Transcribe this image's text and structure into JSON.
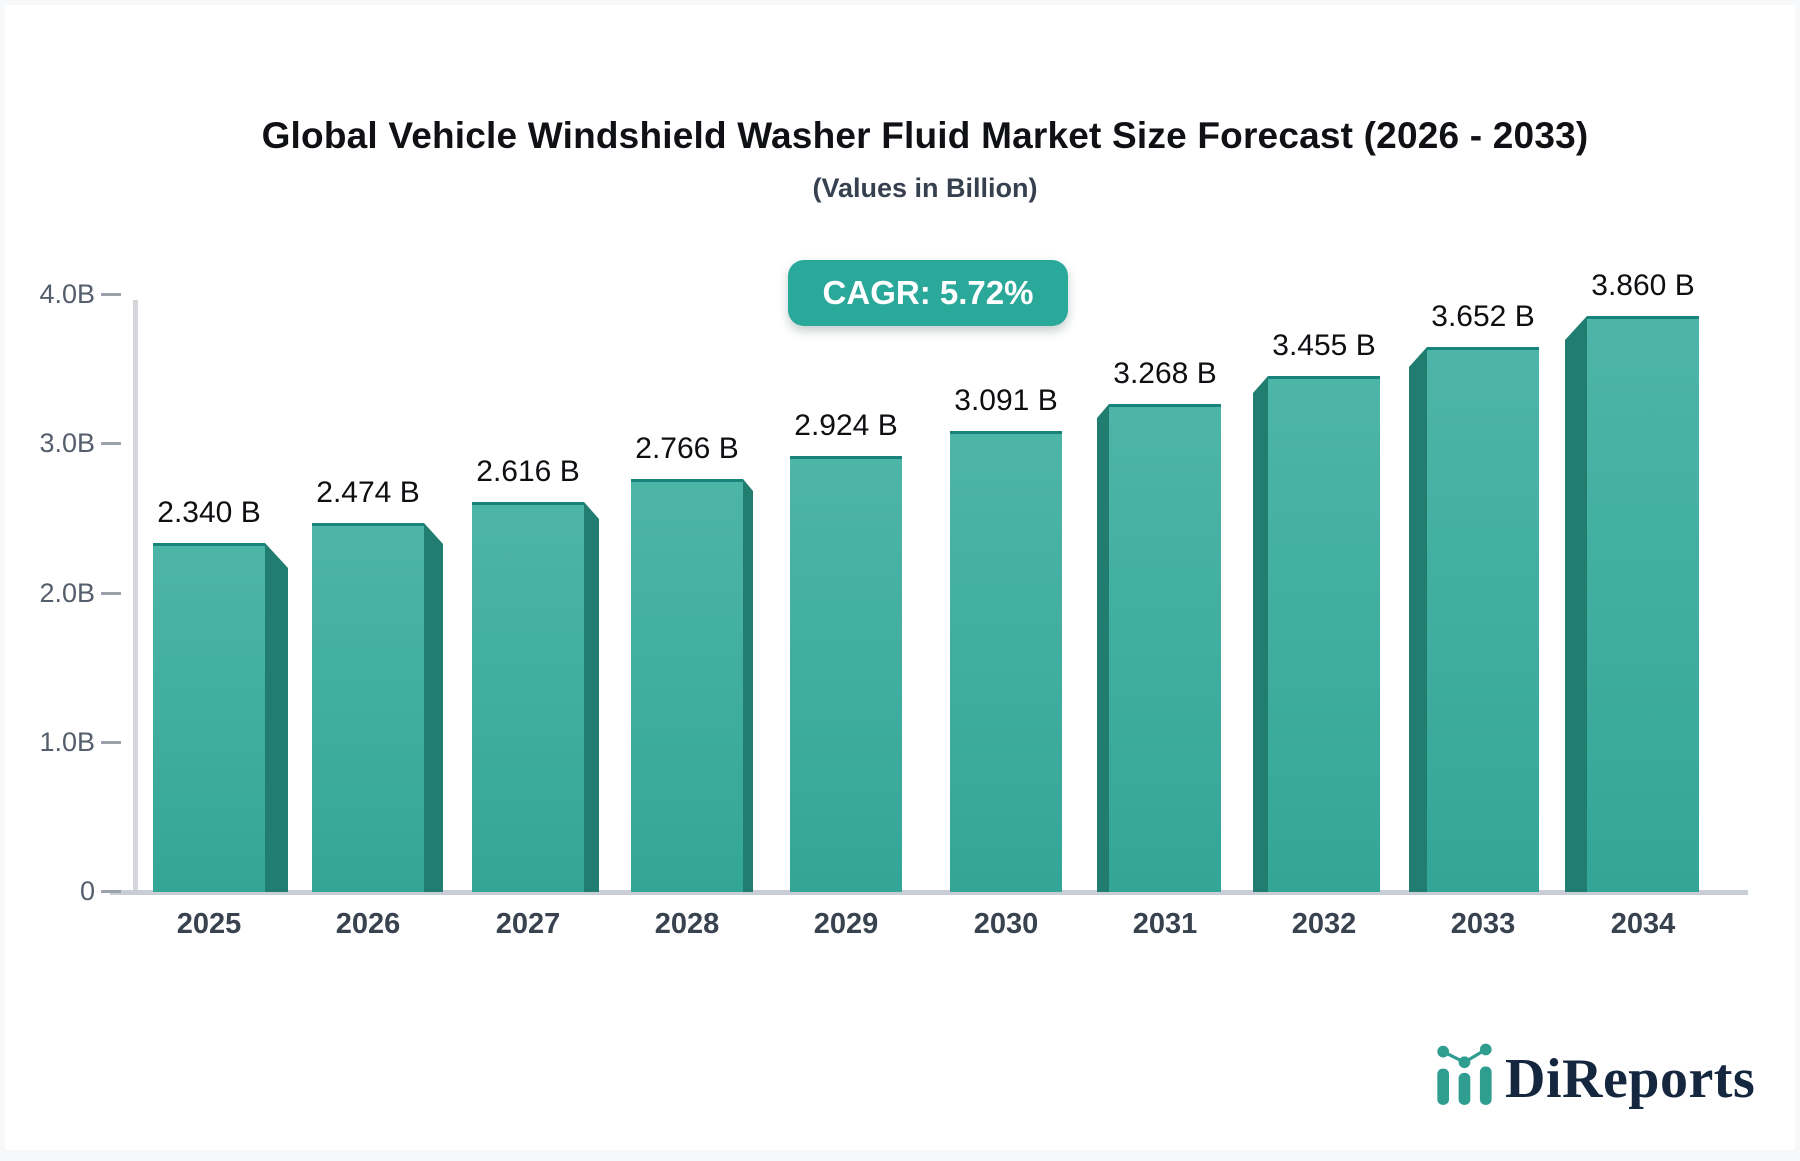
{
  "header": {
    "title": "Global Vehicle Windshield Washer Fluid Market Size Forecast (2026 - 2033)",
    "subtitle": "(Values in Billion)"
  },
  "badge": {
    "label": "CAGR: 5.72%",
    "background": "#2aa99a",
    "text_color": "#ffffff"
  },
  "chart_data": {
    "type": "bar",
    "title": "Global Vehicle Windshield Washer Fluid Market Size Forecast (2026 - 2033)",
    "subtitle": "(Values in Billion)",
    "cagr": "5.72%",
    "categories": [
      "2025",
      "2026",
      "2027",
      "2028",
      "2029",
      "2030",
      "2031",
      "2032",
      "2033",
      "2034"
    ],
    "values": [
      2.34,
      2.474,
      2.616,
      2.766,
      2.924,
      3.091,
      3.268,
      3.455,
      3.652,
      3.86
    ],
    "value_labels": [
      "2.340 B",
      "2.474 B",
      "2.616 B",
      "2.766 B",
      "2.924 B",
      "3.091 B",
      "3.268 B",
      "3.455 B",
      "3.652 B",
      "3.860 B"
    ],
    "unit": "Billion",
    "xlabel": "",
    "ylabel": "",
    "ylim": [
      0,
      4.0
    ],
    "yticks": [
      {
        "value": 4.0,
        "label": "4.0B"
      },
      {
        "value": 3.0,
        "label": "3.0B"
      },
      {
        "value": 2.0,
        "label": "2.0B"
      },
      {
        "value": 1.0,
        "label": "1.0B"
      },
      {
        "value": 0.0,
        "label": "0"
      }
    ],
    "grid": "off",
    "legend": "none",
    "style": "3d-extruded-bars, perspective toward center",
    "colors": {
      "bar_face_top": "#4db5a8",
      "bar_face_bottom": "#33a697",
      "bar_top_edge": "#17837a",
      "bar_side": "#207d70",
      "axis_line": "#d3d7dd",
      "baseline": "#c9ced6",
      "tick": "#9aa2ac",
      "y_label_text": "#555e6c",
      "x_label_text": "#39424f",
      "value_label_text": "#0d0f12"
    }
  },
  "branding": {
    "logo_text": "DiReports",
    "logo_text_color": "#15273f",
    "logo_icon": "mini-bar-chart-with-trend-dots",
    "logo_icon_color": "#2f9e91"
  }
}
